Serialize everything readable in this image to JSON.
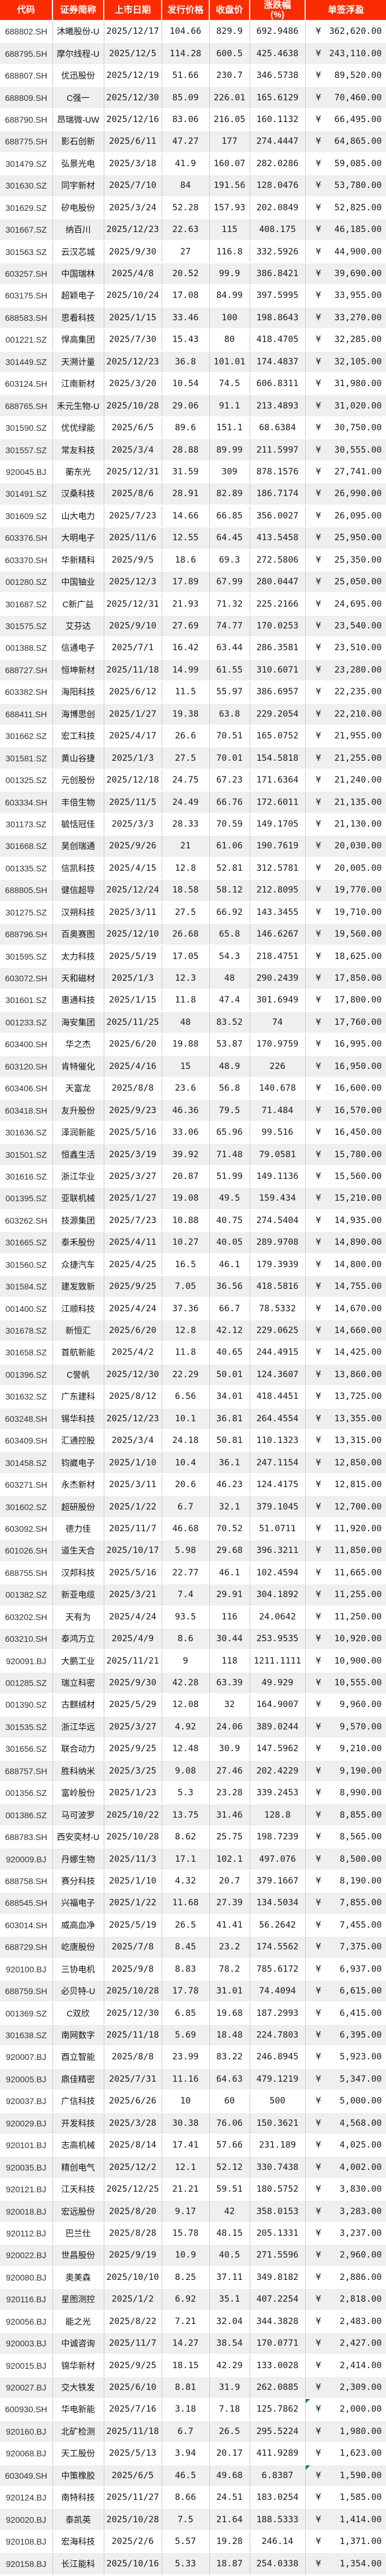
{
  "table": {
    "columns": [
      "代码",
      "证券简称",
      "上市日期",
      "发行价格",
      "收盘价",
      "涨跌幅\n(%)",
      "单签浮盈"
    ],
    "currency_symbol": "¥",
    "rows": [
      [
        "688802.SH",
        "沐曦股份-U",
        "2025/12/17",
        "104.66",
        "829.9",
        "692.9486",
        "362,620.00"
      ],
      [
        "688795.SH",
        "摩尔线程-U",
        "2025/12/5",
        "114.28",
        "600.5",
        "425.4638",
        "243,110.00"
      ],
      [
        "688807.SH",
        "优迅股份",
        "2025/12/19",
        "51.66",
        "230.7",
        "346.5738",
        "89,520.00"
      ],
      [
        "688809.SH",
        "C强一",
        "2025/12/30",
        "85.09",
        "226.01",
        "165.6129",
        "70,460.00"
      ],
      [
        "688790.SH",
        "昂瑞微-UW",
        "2025/12/16",
        "83.06",
        "216.05",
        "160.1132",
        "66,495.00"
      ],
      [
        "688775.SH",
        "影石创新",
        "2025/6/11",
        "47.27",
        "177",
        "274.4447",
        "64,865.00"
      ],
      [
        "301479.SZ",
        "弘景光电",
        "2025/3/18",
        "41.9",
        "160.07",
        "282.0286",
        "59,085.00"
      ],
      [
        "301630.SZ",
        "同宇新材",
        "2025/7/10",
        "84",
        "191.56",
        "128.0476",
        "53,780.00"
      ],
      [
        "301629.SZ",
        "矽电股份",
        "2025/3/24",
        "52.28",
        "157.93",
        "202.0849",
        "52,825.00"
      ],
      [
        "301667.SZ",
        "纳百川",
        "2025/12/23",
        "22.63",
        "115",
        "408.175",
        "46,185.00"
      ],
      [
        "301563.SZ",
        "云汉芯城",
        "2025/9/30",
        "27",
        "116.8",
        "332.5926",
        "44,900.00"
      ],
      [
        "603257.SH",
        "中国瑞林",
        "2025/4/8",
        "20.52",
        "99.9",
        "386.8421",
        "39,690.00"
      ],
      [
        "603175.SH",
        "超颖电子",
        "2025/10/24",
        "17.08",
        "84.99",
        "397.5995",
        "33,955.00"
      ],
      [
        "688583.SH",
        "思看科技",
        "2025/1/15",
        "33.46",
        "100",
        "198.8643",
        "33,270.00"
      ],
      [
        "001221.SZ",
        "悍高集团",
        "2025/7/30",
        "15.43",
        "80",
        "418.4705",
        "32,285.00"
      ],
      [
        "301449.SZ",
        "天溯计量",
        "2025/12/23",
        "36.8",
        "101.01",
        "174.4837",
        "32,105.00"
      ],
      [
        "603124.SH",
        "江南新材",
        "2025/3/20",
        "10.54",
        "74.5",
        "606.8311",
        "31,980.00"
      ],
      [
        "688765.SH",
        "禾元生物-U",
        "2025/10/28",
        "29.06",
        "91.1",
        "213.4893",
        "31,020.00"
      ],
      [
        "301590.SZ",
        "优优绿能",
        "2025/6/5",
        "89.6",
        "151.1",
        "68.6384",
        "30,750.00"
      ],
      [
        "301557.SZ",
        "常友科技",
        "2025/3/4",
        "28.88",
        "89.99",
        "211.5997",
        "30,555.00"
      ],
      [
        "920045.BJ",
        "蘅东光",
        "2025/12/31",
        "31.59",
        "309",
        "878.1576",
        "27,741.00"
      ],
      [
        "301491.SZ",
        "汉桑科技",
        "2025/8/6",
        "28.91",
        "82.89",
        "186.7174",
        "26,990.00"
      ],
      [
        "301609.SZ",
        "山大电力",
        "2025/7/23",
        "14.66",
        "66.85",
        "356.0027",
        "26,095.00"
      ],
      [
        "603376.SH",
        "大明电子",
        "2025/11/6",
        "12.55",
        "64.45",
        "413.5458",
        "25,950.00"
      ],
      [
        "603370.SH",
        "华新精科",
        "2025/9/5",
        "18.6",
        "69.3",
        "272.5806",
        "25,350.00"
      ],
      [
        "001280.SZ",
        "中国铀业",
        "2025/12/3",
        "17.89",
        "67.99",
        "280.0447",
        "25,050.00"
      ],
      [
        "301687.SZ",
        "C新广益",
        "2025/12/31",
        "21.93",
        "71.32",
        "225.2166",
        "24,695.00"
      ],
      [
        "301575.SZ",
        "艾芬达",
        "2025/9/10",
        "27.69",
        "74.77",
        "170.0253",
        "23,540.00"
      ],
      [
        "001388.SZ",
        "信通电子",
        "2025/7/1",
        "16.42",
        "63.44",
        "286.3581",
        "23,510.00"
      ],
      [
        "688727.SH",
        "恒坤新材",
        "2025/11/18",
        "14.99",
        "61.55",
        "310.6071",
        "23,280.00"
      ],
      [
        "603382.SH",
        "海阳科技",
        "2025/6/12",
        "11.5",
        "55.97",
        "386.6957",
        "22,235.00"
      ],
      [
        "688411.SH",
        "海博思创",
        "2025/1/27",
        "19.38",
        "63.8",
        "229.2054",
        "22,210.00"
      ],
      [
        "301662.SZ",
        "宏工科技",
        "2025/4/17",
        "26.6",
        "70.51",
        "165.0752",
        "21,955.00"
      ],
      [
        "301581.SZ",
        "黄山谷捷",
        "2025/1/3",
        "27.5",
        "70.01",
        "154.5818",
        "21,255.00"
      ],
      [
        "001325.SZ",
        "元创股份",
        "2025/12/18",
        "24.75",
        "67.23",
        "171.6364",
        "21,240.00"
      ],
      [
        "603334.SH",
        "丰倍生物",
        "2025/11/5",
        "24.49",
        "66.76",
        "172.6011",
        "21,135.00"
      ],
      [
        "301173.SZ",
        "毓恬冠佳",
        "2025/3/3",
        "28.33",
        "70.59",
        "149.1705",
        "21,130.00"
      ],
      [
        "301668.SZ",
        "昊创瑞通",
        "2025/9/26",
        "21",
        "61.06",
        "190.7619",
        "20,030.00"
      ],
      [
        "001335.SZ",
        "信凯科技",
        "2025/4/15",
        "12.8",
        "52.81",
        "312.5781",
        "20,005.00"
      ],
      [
        "688805.SH",
        "健信超导",
        "2025/12/24",
        "18.58",
        "58.12",
        "212.8095",
        "19,770.00"
      ],
      [
        "301275.SZ",
        "汉朔科技",
        "2025/3/11",
        "27.5",
        "66.92",
        "143.3455",
        "19,710.00"
      ],
      [
        "688796.SH",
        "百奥赛图",
        "2025/12/10",
        "26.68",
        "65.8",
        "146.6267",
        "19,560.00"
      ],
      [
        "301595.SZ",
        "太力科技",
        "2025/5/19",
        "17.05",
        "54.3",
        "218.4751",
        "18,625.00"
      ],
      [
        "603072.SH",
        "天和磁材",
        "2025/1/3",
        "12.3",
        "48",
        "290.2439",
        "17,850.00"
      ],
      [
        "301601.SZ",
        "惠通科技",
        "2025/1/15",
        "11.8",
        "47.4",
        "301.6949",
        "17,800.00"
      ],
      [
        "001233.SZ",
        "海安集团",
        "2025/11/25",
        "48",
        "83.52",
        "74",
        "17,760.00"
      ],
      [
        "603400.SH",
        "华之杰",
        "2025/6/20",
        "19.88",
        "53.87",
        "170.9759",
        "16,995.00"
      ],
      [
        "603120.SH",
        "肯特催化",
        "2025/4/16",
        "15",
        "48.9",
        "226",
        "16,950.00"
      ],
      [
        "603406.SH",
        "天富龙",
        "2025/8/8",
        "23.6",
        "56.8",
        "140.678",
        "16,600.00"
      ],
      [
        "603418.SH",
        "友升股份",
        "2025/9/23",
        "46.36",
        "79.5",
        "71.484",
        "16,570.00"
      ],
      [
        "301636.SZ",
        "泽润新能",
        "2025/5/16",
        "33.06",
        "65.96",
        "99.516",
        "16,450.00"
      ],
      [
        "301501.SZ",
        "恒鑫生活",
        "2025/3/19",
        "39.92",
        "71.48",
        "79.0581",
        "15,780.00"
      ],
      [
        "301616.SZ",
        "浙江华业",
        "2025/3/27",
        "20.87",
        "51.99",
        "149.1136",
        "15,560.00"
      ],
      [
        "001395.SZ",
        "亚联机械",
        "2025/1/27",
        "19.08",
        "49.5",
        "159.434",
        "15,210.00"
      ],
      [
        "603262.SH",
        "技源集团",
        "2025/7/23",
        "10.88",
        "40.75",
        "274.5404",
        "14,935.00"
      ],
      [
        "301665.SZ",
        "泰禾股份",
        "2025/4/11",
        "10.27",
        "40.05",
        "289.9708",
        "14,890.00"
      ],
      [
        "301560.SZ",
        "众捷汽车",
        "2025/4/25",
        "16.5",
        "46.1",
        "179.3939",
        "14,800.00"
      ],
      [
        "301584.SZ",
        "建发致新",
        "2025/9/25",
        "7.05",
        "36.56",
        "418.5816",
        "14,755.00"
      ],
      [
        "001400.SZ",
        "江顺科技",
        "2025/4/24",
        "37.36",
        "66.7",
        "78.5332",
        "14,670.00"
      ],
      [
        "301678.SZ",
        "新恒汇",
        "2025/6/20",
        "12.8",
        "42.12",
        "229.0625",
        "14,660.00"
      ],
      [
        "301658.SZ",
        "首航新能",
        "2025/4/2",
        "11.8",
        "40.65",
        "244.4915",
        "14,425.00"
      ],
      [
        "001396.SZ",
        "C誉帆",
        "2025/12/30",
        "22.29",
        "50.01",
        "124.3607",
        "13,860.00"
      ],
      [
        "301632.SZ",
        "广东建科",
        "2025/8/12",
        "6.56",
        "34.01",
        "418.4451",
        "13,725.00"
      ],
      [
        "603248.SH",
        "锡华科技",
        "2025/12/23",
        "10.1",
        "36.81",
        "264.4554",
        "13,355.00"
      ],
      [
        "603409.SH",
        "汇通控股",
        "2025/3/4",
        "24.18",
        "50.81",
        "110.1323",
        "13,315.00"
      ],
      [
        "301458.SZ",
        "钧崴电子",
        "2025/1/10",
        "10.4",
        "36.1",
        "247.1154",
        "12,850.00"
      ],
      [
        "603271.SH",
        "永杰新材",
        "2025/3/11",
        "20.6",
        "46.23",
        "124.4175",
        "12,815.00"
      ],
      [
        "301602.SZ",
        "超研股份",
        "2025/1/22",
        "6.7",
        "32.1",
        "379.1045",
        "12,700.00"
      ],
      [
        "603092.SH",
        "德力佳",
        "2025/11/7",
        "46.68",
        "70.52",
        "51.0711",
        "11,920.00"
      ],
      [
        "601026.SH",
        "道生天合",
        "2025/10/17",
        "5.98",
        "29.68",
        "396.3211",
        "11,850.00"
      ],
      [
        "688755.SH",
        "汉邦科技",
        "2025/5/16",
        "22.77",
        "46.1",
        "102.4594",
        "11,665.00"
      ],
      [
        "001382.SZ",
        "新亚电缆",
        "2025/3/21",
        "7.4",
        "29.91",
        "304.1892",
        "11,255.00"
      ],
      [
        "603202.SH",
        "天有为",
        "2025/4/24",
        "93.5",
        "116",
        "24.0642",
        "11,250.00"
      ],
      [
        "603210.SH",
        "泰鸿万立",
        "2025/4/9",
        "8.6",
        "30.44",
        "253.9535",
        "10,920.00"
      ],
      [
        "920091.BJ",
        "大鹏工业",
        "2025/11/21",
        "9",
        "118",
        "1211.1111",
        "10,900.00"
      ],
      [
        "001285.SZ",
        "瑞立科密",
        "2025/9/30",
        "42.28",
        "63.39",
        "49.929",
        "10,555.00"
      ],
      [
        "001390.SZ",
        "古麒绒材",
        "2025/5/29",
        "12.08",
        "32",
        "164.9007",
        "9,960.00"
      ],
      [
        "301535.SZ",
        "浙江华远",
        "2025/3/27",
        "4.92",
        "24.06",
        "389.0244",
        "9,570.00"
      ],
      [
        "301656.SZ",
        "联合动力",
        "2025/9/25",
        "12.48",
        "30.9",
        "147.5962",
        "9,210.00"
      ],
      [
        "688757.SH",
        "胜科纳米",
        "2025/3/25",
        "9.08",
        "27.46",
        "202.4229",
        "9,190.00"
      ],
      [
        "001356.SZ",
        "富岭股份",
        "2025/1/23",
        "5.3",
        "23.28",
        "339.2453",
        "8,990.00"
      ],
      [
        "001386.SZ",
        "马可波罗",
        "2025/10/22",
        "13.75",
        "31.46",
        "128.8",
        "8,855.00"
      ],
      [
        "688783.SH",
        "西安奕材-U",
        "2025/10/28",
        "8.62",
        "25.75",
        "198.7239",
        "8,565.00"
      ],
      [
        "920009.BJ",
        "丹娜生物",
        "2025/11/3",
        "17.1",
        "102.1",
        "497.076",
        "8,500.00"
      ],
      [
        "688758.SH",
        "赛分科技",
        "2025/1/10",
        "4.32",
        "20.7",
        "379.1667",
        "8,190.00"
      ],
      [
        "688545.SH",
        "兴福电子",
        "2025/1/22",
        "11.68",
        "27.39",
        "134.5034",
        "7,855.00"
      ],
      [
        "603014.SH",
        "威高血净",
        "2025/5/19",
        "26.5",
        "41.41",
        "56.2642",
        "7,455.00"
      ],
      [
        "688729.SH",
        "屹唐股份",
        "2025/7/8",
        "8.45",
        "23.2",
        "174.5562",
        "7,375.00"
      ],
      [
        "920100.BJ",
        "三协电机",
        "2025/9/8",
        "8.83",
        "78.2",
        "785.6172",
        "6,937.00"
      ],
      [
        "688759.SH",
        "必贝特-U",
        "2025/10/28",
        "17.78",
        "31.01",
        "74.4094",
        "6,615.00"
      ],
      [
        "001369.SZ",
        "C双欣",
        "2025/12/30",
        "6.85",
        "19.68",
        "187.2993",
        "6,415.00"
      ],
      [
        "301638.SZ",
        "南网数字",
        "2025/11/18",
        "5.69",
        "18.48",
        "224.7803",
        "6,395.00"
      ],
      [
        "920007.BJ",
        "酉立智能",
        "2025/8/8",
        "23.99",
        "83.22",
        "246.8945",
        "5,923.00"
      ],
      [
        "920005.BJ",
        "鼎佳精密",
        "2025/7/31",
        "11.16",
        "64.63",
        "479.1219",
        "5,347.00"
      ],
      [
        "920037.BJ",
        "广信科技",
        "2025/6/26",
        "10",
        "60",
        "500",
        "5,000.00"
      ],
      [
        "920029.BJ",
        "开发科技",
        "2025/3/28",
        "30.38",
        "76.06",
        "150.3621",
        "4,568.00"
      ],
      [
        "920101.BJ",
        "志高机械",
        "2025/8/14",
        "17.41",
        "57.66",
        "231.189",
        "4,025.00"
      ],
      [
        "920035.BJ",
        "精创电气",
        "2025/12/2",
        "12.1",
        "52.12",
        "330.7438",
        "4,002.00"
      ],
      [
        "920121.BJ",
        "江天科技",
        "2025/12/25",
        "21.21",
        "59.51",
        "180.5752",
        "3,830.00"
      ],
      [
        "920018.BJ",
        "宏远股份",
        "2025/8/20",
        "9.17",
        "42",
        "358.0153",
        "3,283.00"
      ],
      [
        "920112.BJ",
        "巴兰仕",
        "2025/8/28",
        "15.78",
        "48.15",
        "205.1331",
        "3,237.00"
      ],
      [
        "920022.BJ",
        "世昌股份",
        "2025/9/19",
        "10.9",
        "40.5",
        "271.5596",
        "2,960.00"
      ],
      [
        "920080.BJ",
        "奥美森",
        "2025/10/10",
        "8.25",
        "37.11",
        "349.8182",
        "2,886.00"
      ],
      [
        "920116.BJ",
        "星图测控",
        "2025/1/2",
        "6.92",
        "35.1",
        "407.2254",
        "2,818.00"
      ],
      [
        "920056.BJ",
        "能之光",
        "2025/8/22",
        "7.21",
        "32.04",
        "344.3828",
        "2,483.00"
      ],
      [
        "920003.BJ",
        "中诚咨询",
        "2025/11/7",
        "14.27",
        "38.54",
        "170.0771",
        "2,427.00"
      ],
      [
        "920015.BJ",
        "锦华新材",
        "2025/9/25",
        "18.15",
        "42.29",
        "133.0028",
        "2,414.00"
      ],
      [
        "920027.BJ",
        "交大铁发",
        "2025/6/10",
        "8.81",
        "31.9",
        "262.0885",
        "2,309.00"
      ],
      [
        "600930.SH",
        "华电新能",
        "2025/7/16",
        "3.18",
        "7.18",
        "125.7862",
        "2,000.00",
        1
      ],
      [
        "920160.BJ",
        "北矿检测",
        "2025/11/18",
        "6.7",
        "26.5",
        "295.5224",
        "1,980.00"
      ],
      [
        "920068.BJ",
        "天工股份",
        "2025/5/13",
        "3.94",
        "20.17",
        "411.9289",
        "1,623.00"
      ],
      [
        "603049.SH",
        "中策橡胶",
        "2025/6/5",
        "46.5",
        "49.68",
        "6.8387",
        "1,590.00",
        1
      ],
      [
        "920124.BJ",
        "南特科技",
        "2025/11/27",
        "8.66",
        "24.51",
        "183.0254",
        "1,585.00"
      ],
      [
        "920020.BJ",
        "泰凯英",
        "2025/10/28",
        "7.5",
        "21.64",
        "188.5333",
        "1,414.00"
      ],
      [
        "920108.BJ",
        "宏海科技",
        "2025/2/6",
        "5.57",
        "19.28",
        "246.14",
        "1,371.00"
      ],
      [
        "920158.BJ",
        "长江能科",
        "2025/10/16",
        "5.33",
        "18.87",
        "254.0338",
        "1,354.00"
      ]
    ]
  },
  "colors": {
    "header_bg": "#fb2b00",
    "header_text": "#ffffff",
    "row_band": "#efefef",
    "grid_line": "#c8c8c8",
    "note_marker_green": "#107c41"
  }
}
